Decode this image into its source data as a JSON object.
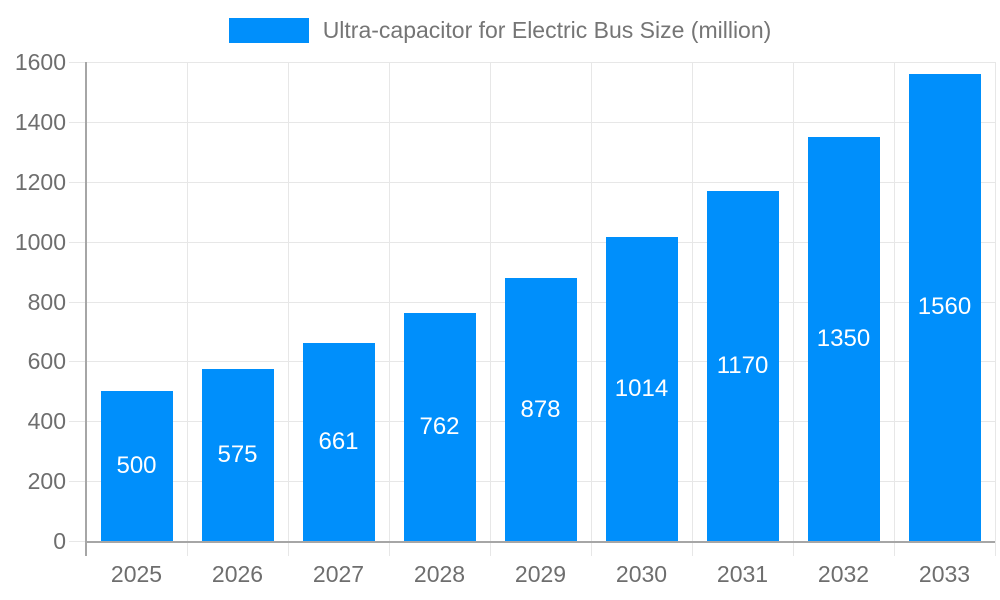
{
  "legend": {
    "label": "Ultra-capacitor for Electric Bus Size (million)"
  },
  "chart_data": {
    "type": "bar",
    "title": "Ultra-capacitor for Electric Bus Size (million)",
    "series_name": "Ultra-capacitor for Electric Bus Size (million)",
    "categories": [
      "2025",
      "2026",
      "2027",
      "2028",
      "2029",
      "2030",
      "2031",
      "2032",
      "2033"
    ],
    "values": [
      500,
      575,
      661,
      762,
      878,
      1014,
      1170,
      1350,
      1560
    ],
    "xlabel": "",
    "ylabel": "",
    "ylim": [
      0,
      1600
    ],
    "ytick_step": 200,
    "yticks": [
      0,
      200,
      400,
      600,
      800,
      1000,
      1200,
      1400,
      1600
    ],
    "grid": true,
    "legend_position": "top",
    "value_label_position": "inside-center",
    "colors": {
      "bar": "#008FFB",
      "grid": "#e7e7e7",
      "axis": "#a6a6a6",
      "tick_label": "#6e6e6e",
      "legend_text": "#757575",
      "value_label": "#ffffff",
      "background": "#ffffff"
    }
  }
}
